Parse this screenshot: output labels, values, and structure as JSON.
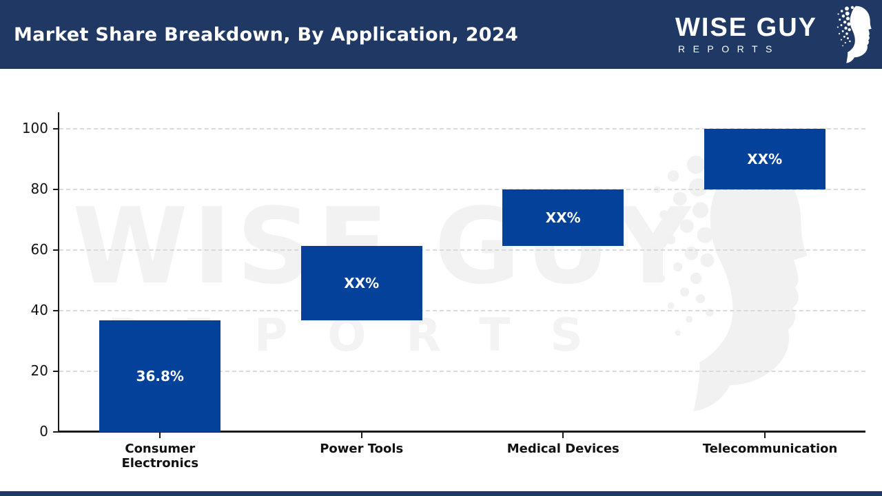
{
  "header": {
    "title": "Market Share Breakdown, By Application, 2024",
    "bg_color": "#203864",
    "logo": {
      "line1": "WISE GUY",
      "line2": "REPORTS"
    }
  },
  "watermark": {
    "line1": "WISE GUY",
    "line2": "REPORTS"
  },
  "chart_data": {
    "type": "bar",
    "variant": "waterfall",
    "title": "Market Share Breakdown, By Application, 2024",
    "categories": [
      "Consumer Electronics",
      "Power Tools",
      "Medical Devices",
      "Telecommunication"
    ],
    "segments": [
      {
        "category": "Consumer Electronics",
        "from": 0,
        "to": 36.8,
        "label": "36.8%"
      },
      {
        "category": "Power Tools",
        "from": 36.8,
        "to": 61.4,
        "label": "XX%"
      },
      {
        "category": "Medical Devices",
        "from": 61.4,
        "to": 80,
        "label": "XX%"
      },
      {
        "category": "Telecommunication",
        "from": 80,
        "to": 100,
        "label": "XX%"
      }
    ],
    "xlabel": "",
    "ylabel": "",
    "ylim": [
      0,
      100
    ],
    "yticks": [
      0,
      20,
      40,
      60,
      80,
      100
    ],
    "grid": "horizontal-dashed",
    "legend": "none",
    "bar_color": "#04419b",
    "bar_label_color": "#ffffff",
    "grid_color": "#d9d9d9",
    "axis_color": "#1a1a1a"
  }
}
